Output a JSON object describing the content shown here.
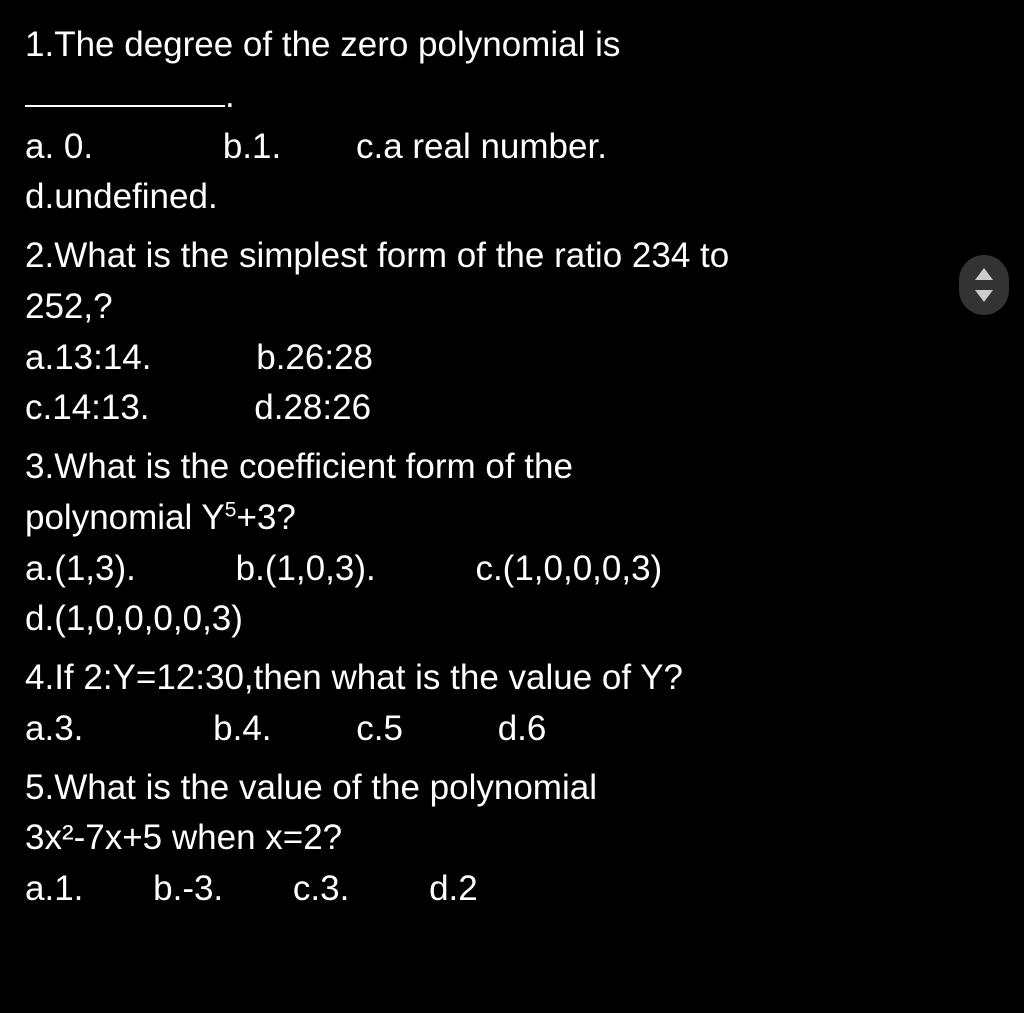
{
  "background_color": "#000000",
  "text_color": "#ffffff",
  "font_family": "Arial",
  "base_font_size": 35,
  "questions": [
    {
      "number": "1",
      "text_before_blank": "1.The degree of the zero polynomial is",
      "blank_suffix": ".",
      "options": {
        "a": "a. 0.",
        "b": "b.1.",
        "c": "c.a real number.",
        "d": "d.undefined."
      }
    },
    {
      "number": "2",
      "text_line1": "2.What is the simplest form of the ratio 234 to",
      "text_line2": "252,?",
      "options": {
        "a": "a.13:14.",
        "b": "b.26:28",
        "c": "c.14:13.",
        "d": "d.28:26"
      }
    },
    {
      "number": "3",
      "text_line1": "3.What is the coefficient form of the",
      "text_line2_pre": "polynomial Y",
      "superscript": "5",
      "text_line2_post": "+3?",
      "options": {
        "a": "a.(1,3).",
        "b": "b.(1,0,3).",
        "c": "c.(1,0,0,0,3)",
        "d": "d.(1,0,0,0,0,3)"
      }
    },
    {
      "number": "4",
      "text": "4.If 2:Y=12:30,then what is the value of Y?",
      "options": {
        "a": "a.3.",
        "b": "b.4.",
        "c": "c.5",
        "d": "d.6"
      }
    },
    {
      "number": "5",
      "text_line1": "5.What is the value of the polynomial",
      "text_line2": "3x²-7x+5 when x=2?",
      "options": {
        "a": "a.1.",
        "b": "b.-3.",
        "c": "c.3.",
        "d": "d.2"
      }
    }
  ],
  "scroll_widget": {
    "bg_color": "#333333",
    "arrow_color": "#cccccc"
  }
}
